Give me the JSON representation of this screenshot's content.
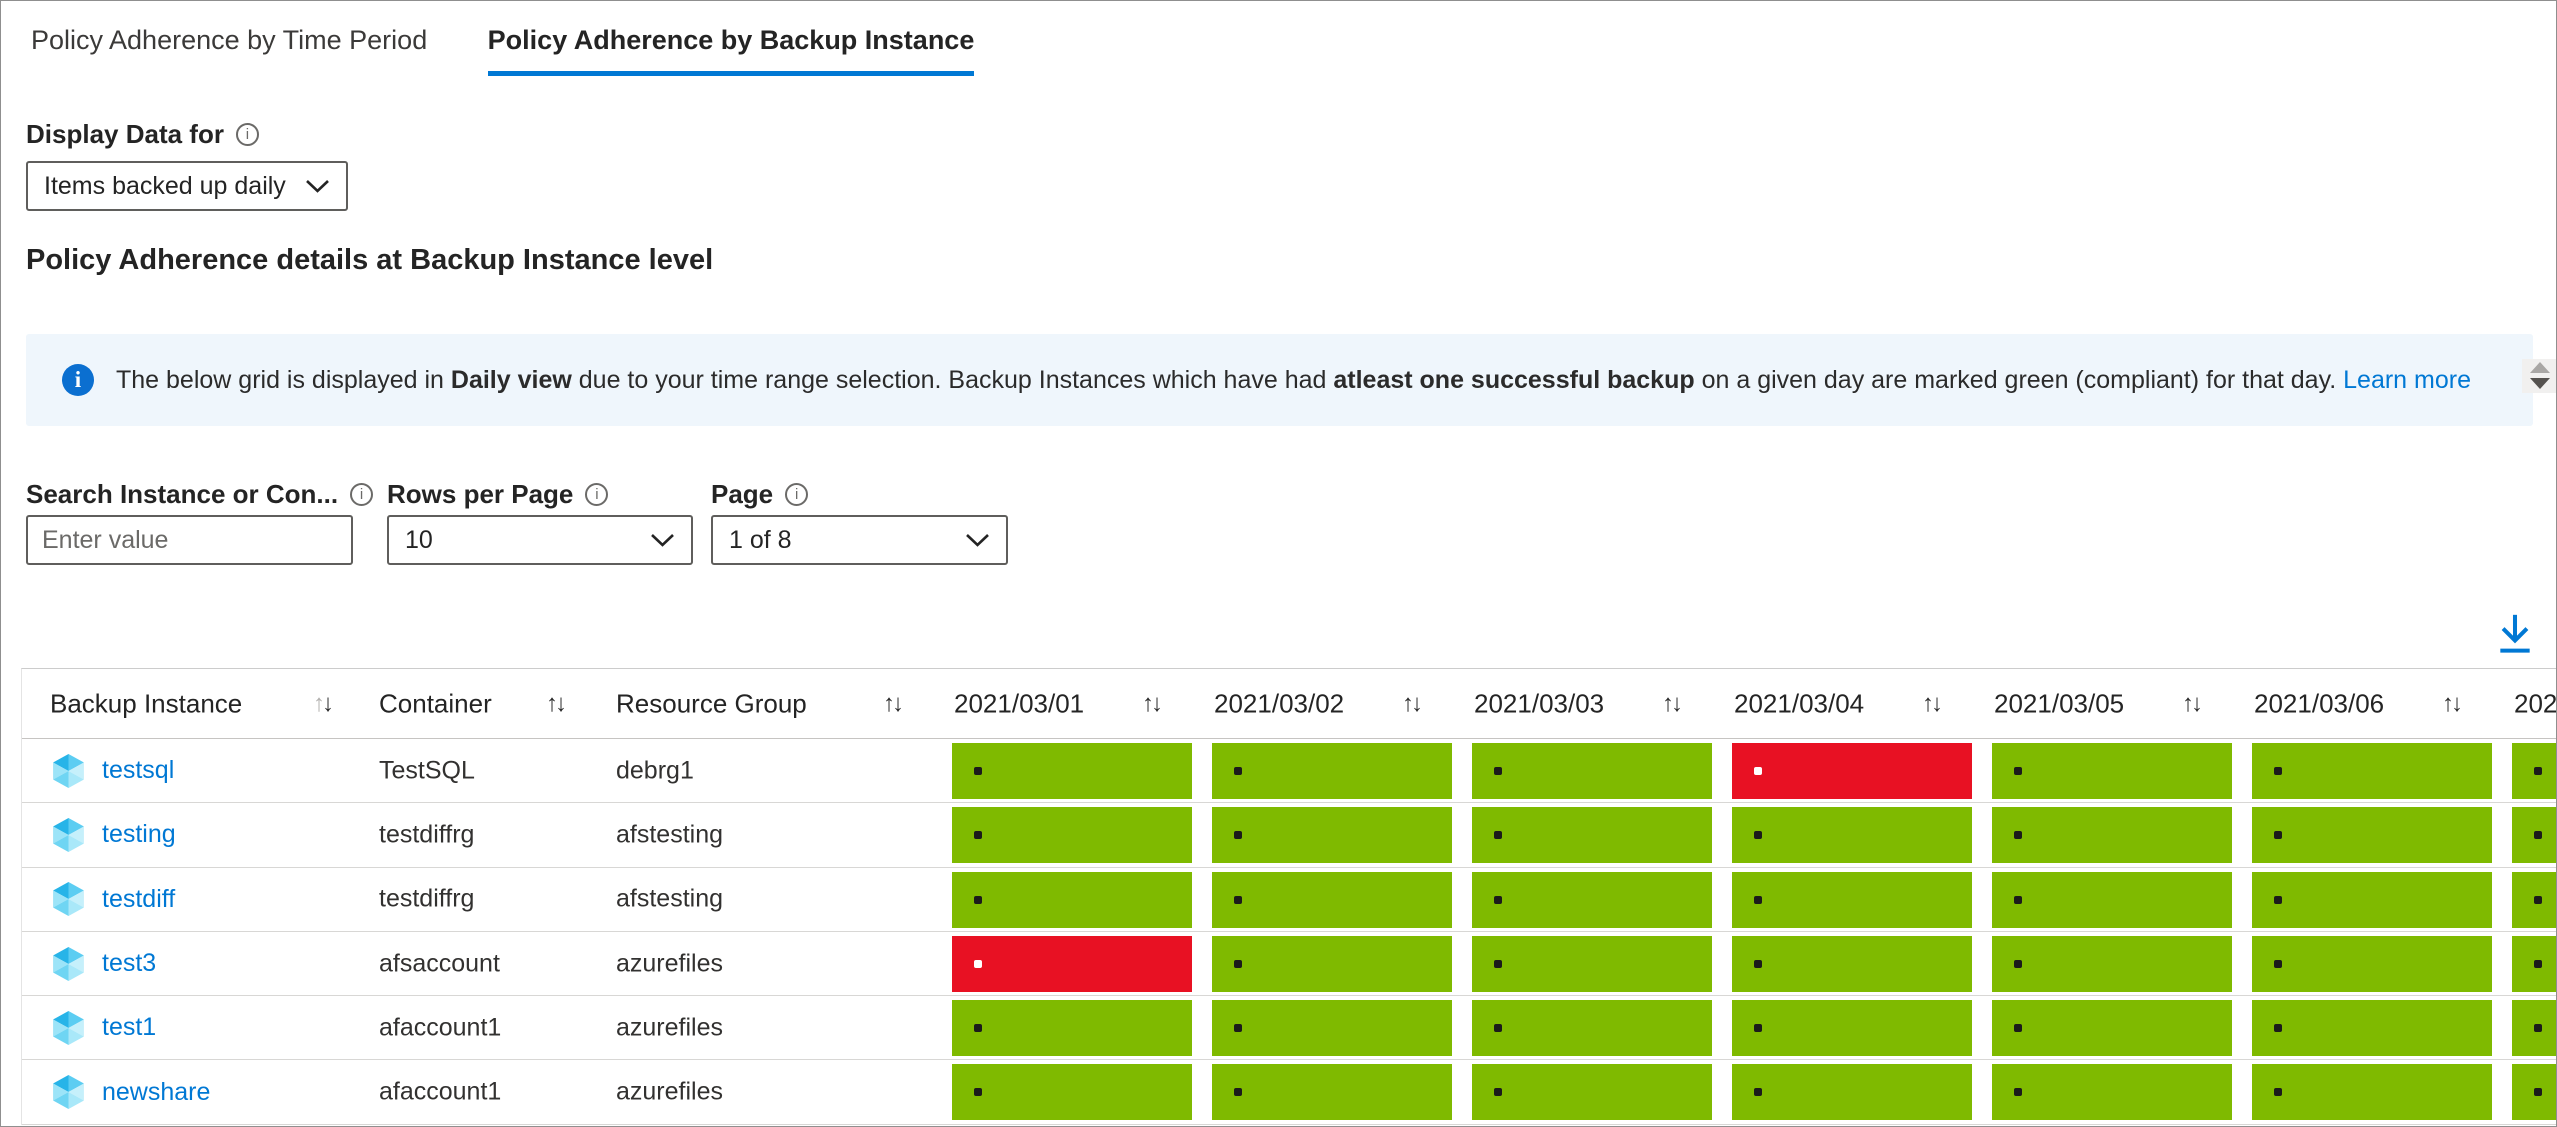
{
  "colors": {
    "accent": "#0078d4",
    "green": "#7fba00",
    "red": "#e81123",
    "dot_on_green": "#1b1b1b",
    "dot_on_red": "#ffffff"
  },
  "tabs": [
    {
      "label": "Policy Adherence by Time Period",
      "active": false
    },
    {
      "label": "Policy Adherence by Backup Instance",
      "active": true
    }
  ],
  "display_data": {
    "label": "Display Data for",
    "value": "Items backed up daily"
  },
  "section_title": "Policy Adherence details at Backup Instance level",
  "banner": {
    "segments": [
      {
        "text": "The below grid is displayed in ",
        "bold": false
      },
      {
        "text": "Daily view",
        "bold": true
      },
      {
        "text": " due to your time range selection. Backup Instances which have had ",
        "bold": false
      },
      {
        "text": "atleast one successful backup",
        "bold": true
      },
      {
        "text": " on a given day are marked green (compliant) for that day. ",
        "bold": false
      }
    ],
    "link": "Learn more"
  },
  "filters": {
    "search": {
      "label": "Search Instance or Con...",
      "placeholder": "Enter value"
    },
    "rows_per_page": {
      "label": "Rows per Page",
      "value": "10"
    },
    "page": {
      "label": "Page",
      "value": "1 of 8"
    }
  },
  "table": {
    "text_columns": [
      "Backup Instance",
      "Container",
      "Resource Group"
    ],
    "date_columns": [
      "2021/03/01",
      "2021/03/02",
      "2021/03/03",
      "2021/03/04",
      "2021/03/05",
      "2021/03/06",
      "202"
    ],
    "rows": [
      {
        "instance": "testsql",
        "container": "TestSQL",
        "resource_group": "debrg1",
        "days": [
          "green",
          "green",
          "green",
          "red",
          "green",
          "green",
          "green"
        ]
      },
      {
        "instance": "testing",
        "container": "testdiffrg",
        "resource_group": "afstesting",
        "days": [
          "green",
          "green",
          "green",
          "green",
          "green",
          "green",
          "green"
        ]
      },
      {
        "instance": "testdiff",
        "container": "testdiffrg",
        "resource_group": "afstesting",
        "days": [
          "green",
          "green",
          "green",
          "green",
          "green",
          "green",
          "green"
        ]
      },
      {
        "instance": "test3",
        "container": "afsaccount",
        "resource_group": "azurefiles",
        "days": [
          "red",
          "green",
          "green",
          "green",
          "green",
          "green",
          "green"
        ]
      },
      {
        "instance": "test1",
        "container": "afaccount1",
        "resource_group": "azurefiles",
        "days": [
          "green",
          "green",
          "green",
          "green",
          "green",
          "green",
          "green"
        ]
      },
      {
        "instance": "newshare",
        "container": "afaccount1",
        "resource_group": "azurefiles",
        "days": [
          "green",
          "green",
          "green",
          "green",
          "green",
          "green",
          "green"
        ]
      }
    ]
  }
}
